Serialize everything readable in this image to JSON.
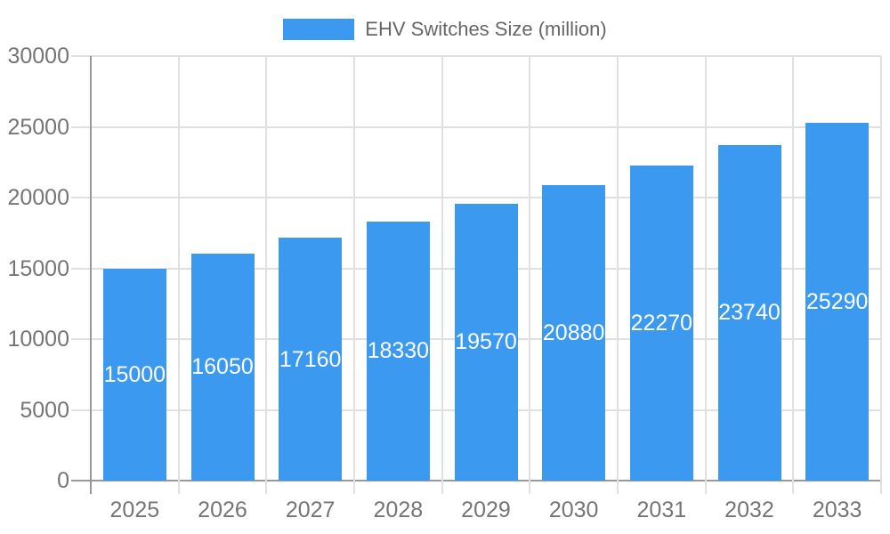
{
  "colors": {
    "bar": "#3B99F0",
    "grid": "#E0E0E0",
    "axis": "#999999",
    "axis_text": "#757575",
    "legend_text": "#666666",
    "bar_label_text": "#FFFFFF",
    "background": "#FFFFFF"
  },
  "chart_data": {
    "type": "bar",
    "title": "",
    "xlabel": "",
    "ylabel": "",
    "legend": {
      "label": "EHV Switches Size (million)",
      "position": "top-center"
    },
    "categories": [
      "2025",
      "2026",
      "2027",
      "2028",
      "2029",
      "2030",
      "2031",
      "2032",
      "2033"
    ],
    "values": [
      15000,
      16050,
      17160,
      18330,
      19570,
      20880,
      22270,
      23740,
      25290
    ],
    "ylim": [
      0,
      30000
    ],
    "yticks": [
      0,
      5000,
      10000,
      15000,
      20000,
      25000,
      30000
    ],
    "grid": true,
    "value_labels": "inside-center-white"
  }
}
